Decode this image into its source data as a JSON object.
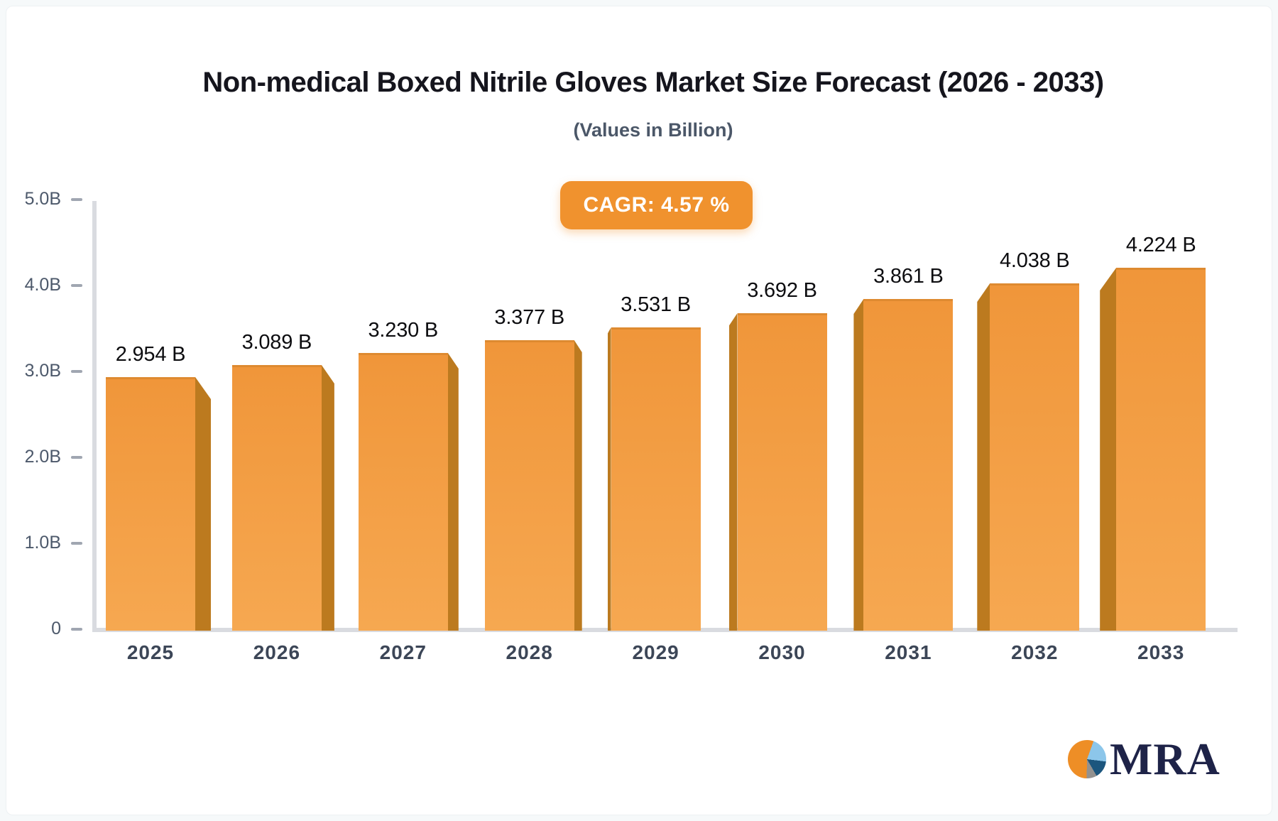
{
  "header": {
    "title": "Non-medical Boxed Nitrile Gloves Market Size Forecast (2026 - 2033)",
    "subtitle": "(Values in Billion)"
  },
  "badge": {
    "label": "CAGR: 4.57 %",
    "color": "#f0922e"
  },
  "chart_data": {
    "type": "bar",
    "title": "Non-medical Boxed Nitrile Gloves Market Size Forecast (2026 - 2033)",
    "subtitle": "(Values in Billion)",
    "cagr": "4.57%",
    "categories": [
      "2025",
      "2026",
      "2027",
      "2028",
      "2029",
      "2030",
      "2031",
      "2032",
      "2033"
    ],
    "values": [
      2.954,
      3.089,
      3.23,
      3.377,
      3.531,
      3.692,
      3.861,
      4.038,
      4.224
    ],
    "value_labels": [
      "2.954 B",
      "3.089 B",
      "3.230 B",
      "3.377 B",
      "3.531 B",
      "3.692 B",
      "3.861 B",
      "4.038 B",
      "4.224 B"
    ],
    "xlabel": "",
    "ylabel": "",
    "ylim": [
      0,
      5
    ],
    "yticks": [
      "0",
      "1.0B",
      "2.0B",
      "3.0B",
      "4.0B",
      "5.0B"
    ],
    "grid": false,
    "legend": false,
    "bar_color": "#f39b40",
    "bar_side_color": "#bc7a1f",
    "bar_style": "3d-pseudo-perspective"
  },
  "logo": {
    "text": "MRA"
  }
}
